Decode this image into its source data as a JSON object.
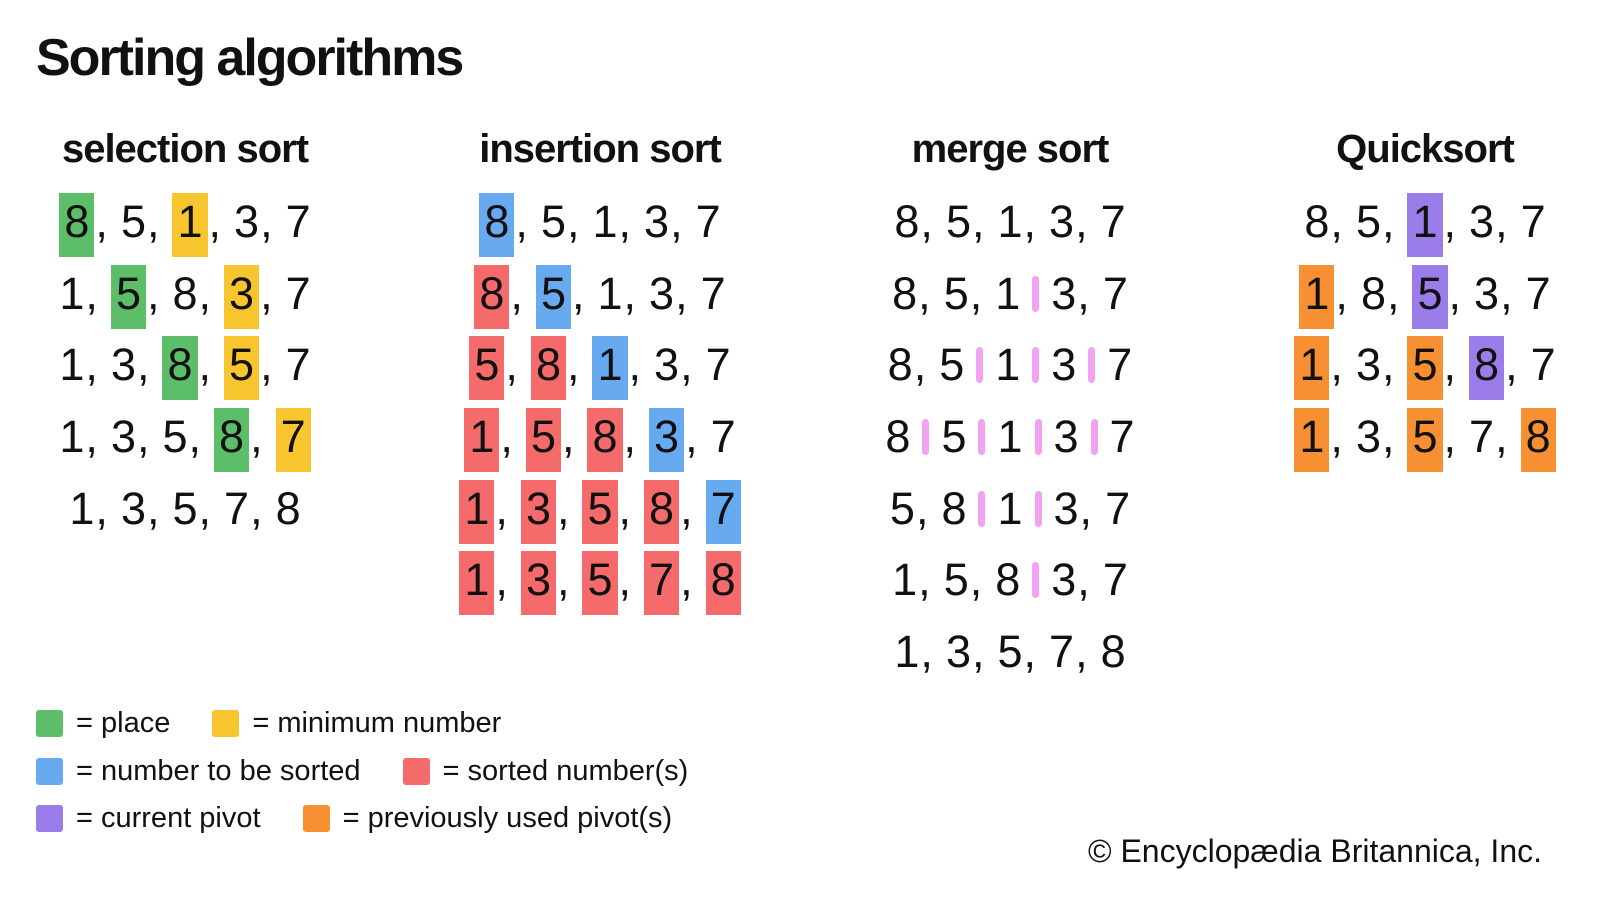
{
  "title": "Sorting algorithms",
  "copyright": "© Encyclopædia Britannica, Inc.",
  "colors": {
    "place": "#5cbe68",
    "minimum": "#f7c62e",
    "to_be_sorted": "#68aaf0",
    "sorted": "#f56a6a",
    "current_pivot": "#9b7de9",
    "used_pivot": "#f79032",
    "divider": "#f1a3f1"
  },
  "columns": [
    {
      "id": "selection-sort",
      "label": "selection sort",
      "rows": [
        [
          {
            "v": "8",
            "h": "place"
          },
          {
            "v": "5"
          },
          {
            "v": "1",
            "h": "minimum"
          },
          {
            "v": "3"
          },
          {
            "v": "7"
          }
        ],
        [
          {
            "v": "1"
          },
          {
            "v": "5",
            "h": "place"
          },
          {
            "v": "8"
          },
          {
            "v": "3",
            "h": "minimum"
          },
          {
            "v": "7"
          }
        ],
        [
          {
            "v": "1"
          },
          {
            "v": "3"
          },
          {
            "v": "8",
            "h": "place"
          },
          {
            "v": "5",
            "h": "minimum"
          },
          {
            "v": "7"
          }
        ],
        [
          {
            "v": "1"
          },
          {
            "v": "3"
          },
          {
            "v": "5"
          },
          {
            "v": "8",
            "h": "place"
          },
          {
            "v": "7",
            "h": "minimum"
          }
        ],
        [
          {
            "v": "1"
          },
          {
            "v": "3"
          },
          {
            "v": "5"
          },
          {
            "v": "7"
          },
          {
            "v": "8"
          }
        ]
      ]
    },
    {
      "id": "insertion-sort",
      "label": "insertion sort",
      "rows": [
        [
          {
            "v": "8",
            "h": "to_be_sorted"
          },
          {
            "v": "5"
          },
          {
            "v": "1"
          },
          {
            "v": "3"
          },
          {
            "v": "7"
          }
        ],
        [
          {
            "v": "8",
            "h": "sorted"
          },
          {
            "v": "5",
            "h": "to_be_sorted"
          },
          {
            "v": "1"
          },
          {
            "v": "3"
          },
          {
            "v": "7"
          }
        ],
        [
          {
            "v": "5",
            "h": "sorted"
          },
          {
            "v": "8",
            "h": "sorted"
          },
          {
            "v": "1",
            "h": "to_be_sorted"
          },
          {
            "v": "3"
          },
          {
            "v": "7"
          }
        ],
        [
          {
            "v": "1",
            "h": "sorted"
          },
          {
            "v": "5",
            "h": "sorted"
          },
          {
            "v": "8",
            "h": "sorted"
          },
          {
            "v": "3",
            "h": "to_be_sorted"
          },
          {
            "v": "7"
          }
        ],
        [
          {
            "v": "1",
            "h": "sorted"
          },
          {
            "v": "3",
            "h": "sorted"
          },
          {
            "v": "5",
            "h": "sorted"
          },
          {
            "v": "8",
            "h": "sorted"
          },
          {
            "v": "7",
            "h": "to_be_sorted"
          }
        ],
        [
          {
            "v": "1",
            "h": "sorted"
          },
          {
            "v": "3",
            "h": "sorted"
          },
          {
            "v": "5",
            "h": "sorted"
          },
          {
            "v": "7",
            "h": "sorted"
          },
          {
            "v": "8",
            "h": "sorted"
          }
        ]
      ]
    },
    {
      "id": "merge-sort",
      "label": "merge sort",
      "rows": [
        [
          {
            "v": "8"
          },
          {
            "v": "5"
          },
          {
            "v": "1"
          },
          {
            "v": "3"
          },
          {
            "v": "7"
          }
        ],
        [
          {
            "v": "8"
          },
          {
            "v": "5"
          },
          {
            "v": "1"
          },
          {
            "d": true
          },
          {
            "v": "3"
          },
          {
            "v": "7"
          }
        ],
        [
          {
            "v": "8"
          },
          {
            "v": "5"
          },
          {
            "d": true
          },
          {
            "v": "1"
          },
          {
            "d": true
          },
          {
            "v": "3"
          },
          {
            "d": true
          },
          {
            "v": "7"
          }
        ],
        [
          {
            "v": "8"
          },
          {
            "d": true
          },
          {
            "v": "5"
          },
          {
            "d": true
          },
          {
            "v": "1"
          },
          {
            "d": true
          },
          {
            "v": "3"
          },
          {
            "d": true
          },
          {
            "v": "7"
          }
        ],
        [
          {
            "v": "5"
          },
          {
            "v": "8"
          },
          {
            "d": true
          },
          {
            "v": "1"
          },
          {
            "d": true
          },
          {
            "v": "3"
          },
          {
            "v": "7"
          }
        ],
        [
          {
            "v": "1"
          },
          {
            "v": "5"
          },
          {
            "v": "8"
          },
          {
            "d": true
          },
          {
            "v": "3"
          },
          {
            "v": "7"
          }
        ],
        [
          {
            "v": "1"
          },
          {
            "v": "3"
          },
          {
            "v": "5"
          },
          {
            "v": "7"
          },
          {
            "v": "8"
          }
        ]
      ]
    },
    {
      "id": "quicksort",
      "label": "Quicksort",
      "rows": [
        [
          {
            "v": "8"
          },
          {
            "v": "5"
          },
          {
            "v": "1",
            "h": "current_pivot"
          },
          {
            "v": "3"
          },
          {
            "v": "7"
          }
        ],
        [
          {
            "v": "1",
            "h": "used_pivot"
          },
          {
            "v": "8"
          },
          {
            "v": "5",
            "h": "current_pivot"
          },
          {
            "v": "3"
          },
          {
            "v": "7"
          }
        ],
        [
          {
            "v": "1",
            "h": "used_pivot"
          },
          {
            "v": "3"
          },
          {
            "v": "5",
            "h": "used_pivot"
          },
          {
            "v": "8",
            "h": "current_pivot"
          },
          {
            "v": "7"
          }
        ],
        [
          {
            "v": "1",
            "h": "used_pivot"
          },
          {
            "v": "3"
          },
          {
            "v": "5",
            "h": "used_pivot"
          },
          {
            "v": "7"
          },
          {
            "v": "8",
            "h": "used_pivot"
          }
        ]
      ]
    }
  ],
  "legend": {
    "rows": [
      [
        {
          "h": "place",
          "label": "= place"
        },
        {
          "h": "minimum",
          "label": "= minimum number"
        }
      ],
      [
        {
          "h": "to_be_sorted",
          "label": "= number to be sorted"
        },
        {
          "h": "sorted",
          "label": "= sorted number(s)"
        }
      ],
      [
        {
          "h": "current_pivot",
          "label": "= current pivot"
        },
        {
          "h": "used_pivot",
          "label": "= previously used pivot(s)"
        }
      ]
    ]
  }
}
